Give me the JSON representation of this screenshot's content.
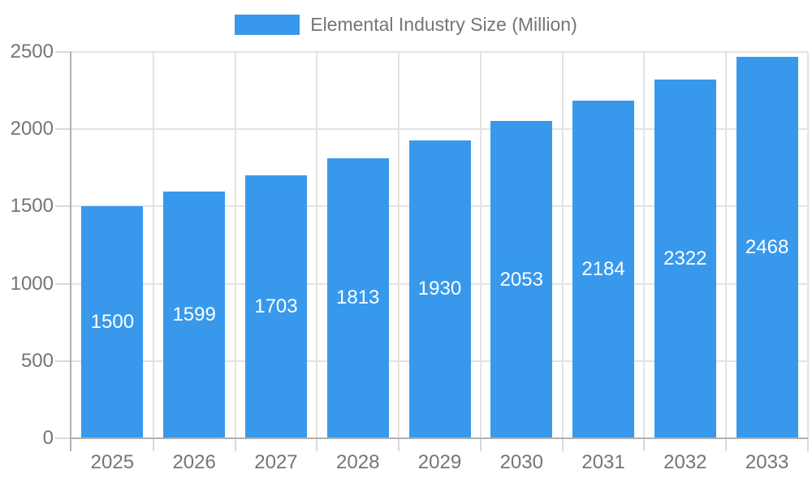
{
  "chart_data": {
    "type": "bar",
    "title": "Elemental Industry Size (Million)",
    "legend": [
      "Elemental Industry Size (Million)"
    ],
    "legend_position": "top-center",
    "categories": [
      "2025",
      "2026",
      "2027",
      "2028",
      "2029",
      "2030",
      "2031",
      "2032",
      "2033"
    ],
    "values": [
      1500,
      1599,
      1703,
      1813,
      1930,
      2053,
      2184,
      2322,
      2468
    ],
    "value_labels_inside_bars": true,
    "xlabel": "",
    "ylabel": "",
    "ylim": [
      0,
      2500
    ],
    "yticks": [
      0,
      500,
      1000,
      1500,
      2000,
      2500
    ],
    "grid": "on",
    "colors": {
      "bar": "#3899EC",
      "bar_value_label": "#FFFFFF",
      "axis_text": "#757575",
      "grid_line": "#E3E3E3",
      "tick_line": "#D9D9D9",
      "axis_line": "#B0B0B0",
      "background": "#FFFFFF"
    }
  }
}
